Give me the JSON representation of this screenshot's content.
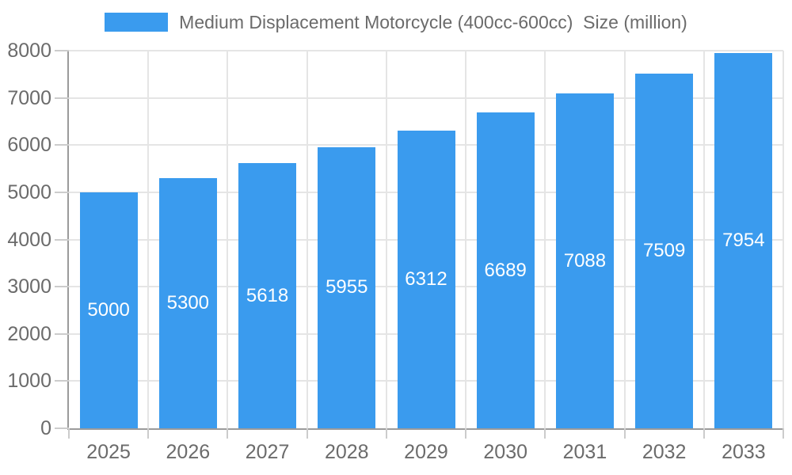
{
  "legend": {
    "label": "Medium Displacement Motorcycle (400cc-600cc)  Size (million)"
  },
  "colors": {
    "bar": "#3a9bee",
    "axis_line": "#9b9b9b",
    "gridline": "#e5e5e5",
    "tick": "#cccccc",
    "text": "#6b6b6b",
    "value_label": "#ffffff"
  },
  "chart_data": {
    "type": "bar",
    "title": "",
    "xlabel": "",
    "ylabel": "",
    "categories": [
      "2025",
      "2026",
      "2027",
      "2028",
      "2029",
      "2030",
      "2031",
      "2032",
      "2033"
    ],
    "values": [
      5000,
      5300,
      5618,
      5955,
      6312,
      6689,
      7088,
      7509,
      7954
    ],
    "series_name": "Medium Displacement Motorcycle (400cc-600cc)  Size (million)",
    "ylim": [
      0,
      8000
    ],
    "yticks": [
      0,
      1000,
      2000,
      3000,
      4000,
      5000,
      6000,
      7000,
      8000
    ],
    "grid": true,
    "vertical_gridlines": true,
    "legend_position": "top-center",
    "value_labels": "inside-center-white"
  }
}
